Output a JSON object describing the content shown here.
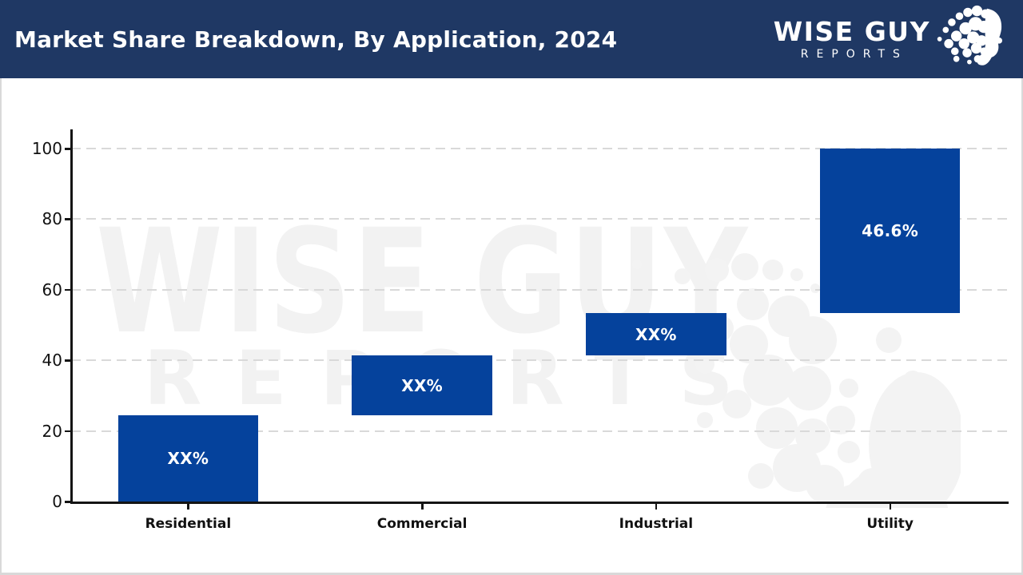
{
  "page": {
    "background": "#ffffff",
    "frame_border_color": "#d9d9d9"
  },
  "header": {
    "background": "#1f3864",
    "title": "Market Share Breakdown, By Application, 2024",
    "logo": {
      "line1": "WISE GUY",
      "line2": "REPORTS"
    }
  },
  "watermark": {
    "line1": "WISE GUY",
    "line2": "REPORTS"
  },
  "chart_data": {
    "type": "bar",
    "subtype": "stacked-waterfall",
    "title": "Market Share Breakdown, By Application, 2024",
    "categories": [
      "Residential",
      "Commercial",
      "Industrial",
      "Utility"
    ],
    "segments": [
      {
        "category": "Residential",
        "start": 0,
        "end": 24.5,
        "value_label": "XX%"
      },
      {
        "category": "Commercial",
        "start": 24.5,
        "end": 41.3,
        "value_label": "XX%"
      },
      {
        "category": "Industrial",
        "start": 41.3,
        "end": 53.4,
        "value_label": "XX%"
      },
      {
        "category": "Utility",
        "start": 53.4,
        "end": 100,
        "value": 46.6,
        "value_label": "46.6%"
      }
    ],
    "xlabel": "",
    "ylabel": "",
    "ylim": [
      0,
      100
    ],
    "yticks": [
      0,
      20,
      40,
      60,
      80,
      100
    ],
    "grid": "horizontal-dashed",
    "legend": "none",
    "bar_color": "#05429c",
    "bar_label_color": "#ffffff",
    "axis_color": "#141414",
    "gridline_color": "#d9d9d9"
  }
}
